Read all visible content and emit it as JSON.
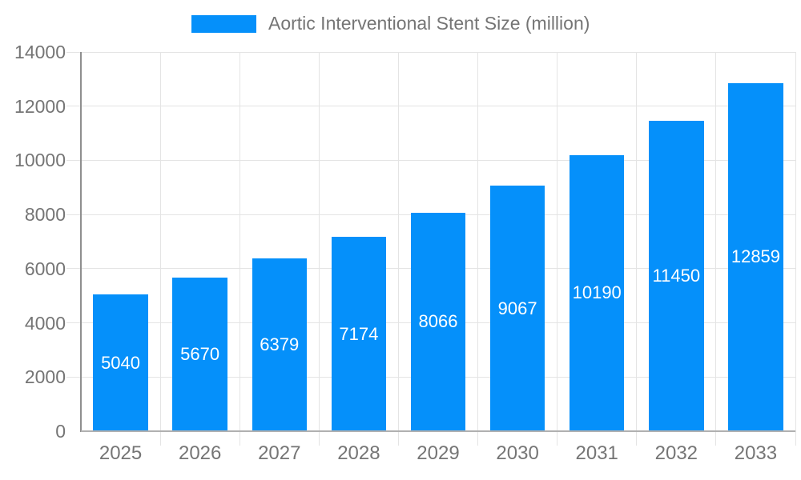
{
  "legend": {
    "label": "Aortic Interventional Stent Size (million)",
    "swatch_color": "#0590fa"
  },
  "chart_data": {
    "type": "bar",
    "title": "Aortic Interventional Stent Size (million)",
    "categories": [
      "2025",
      "2026",
      "2027",
      "2028",
      "2029",
      "2030",
      "2031",
      "2032",
      "2033"
    ],
    "values": [
      5040,
      5670,
      6379,
      7174,
      8066,
      9067,
      10190,
      11450,
      12859
    ],
    "xlabel": "",
    "ylabel": "",
    "ylim": [
      0,
      14000
    ],
    "ytick_step": 2000,
    "ytick_labels": [
      "0",
      "2000",
      "4000",
      "6000",
      "8000",
      "10000",
      "12000",
      "14000"
    ],
    "grid": true,
    "legend_position": "top",
    "bar_color": "#0590fa",
    "value_label_color": "#ffffff",
    "axis_label_color": "#757575",
    "gridline_color": "#e4e4e4"
  }
}
